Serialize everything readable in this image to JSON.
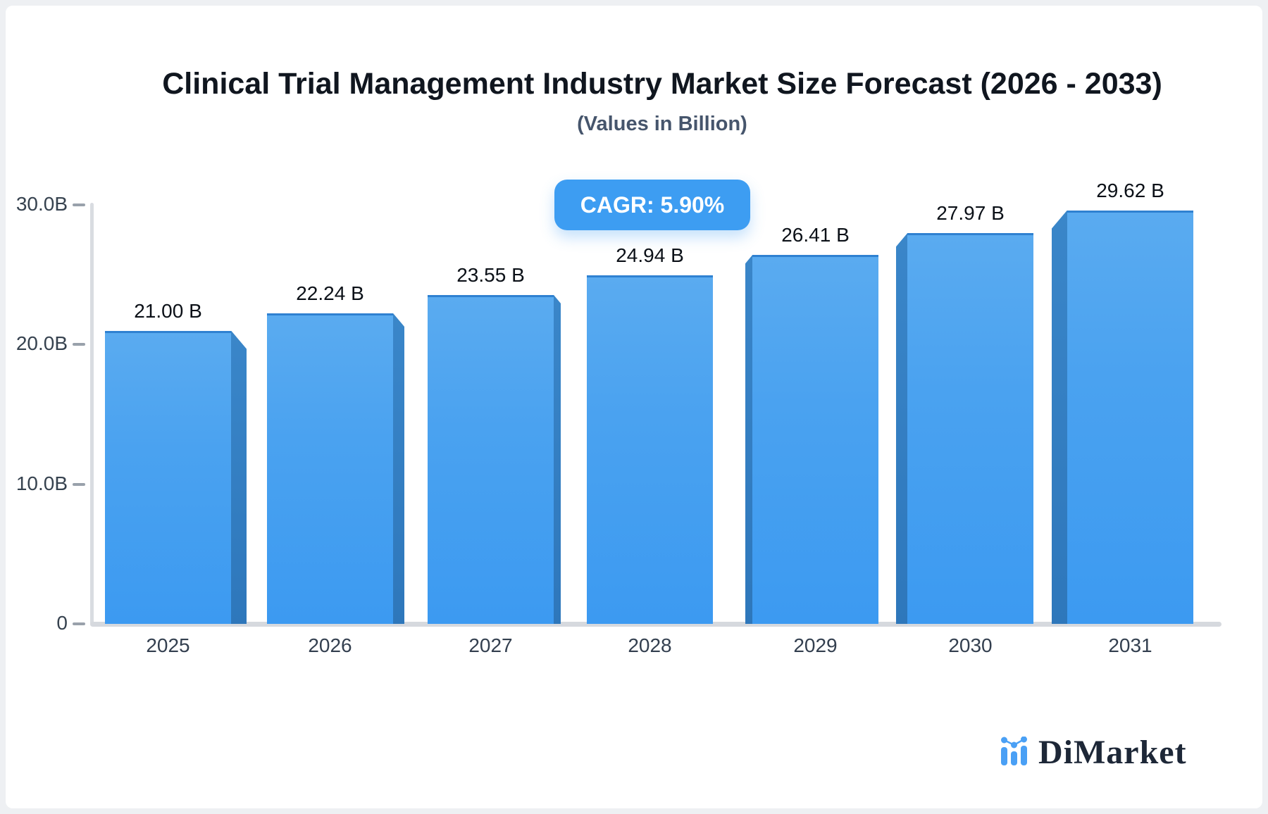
{
  "page": {
    "background_color": "#eef0f3",
    "card_color": "#ffffff"
  },
  "header": {
    "title": "Clinical Trial Management Industry Market Size Forecast (2026 - 2033)",
    "subtitle": "(Values in Billion)"
  },
  "badge": {
    "label": "CAGR: 5.90%",
    "color": "#3d9df2",
    "text_color": "#ffffff"
  },
  "chart_data": {
    "type": "bar",
    "title": "Clinical Trial Management Industry Market Size Forecast (2026 - 2033)",
    "subtitle": "(Values in Billion)",
    "categories": [
      "2025",
      "2026",
      "2027",
      "2028",
      "2029",
      "2030",
      "2031"
    ],
    "values": [
      21.0,
      22.24,
      23.55,
      24.94,
      26.41,
      27.97,
      29.62
    ],
    "value_labels": [
      "21.00 B",
      "22.24 B",
      "23.55 B",
      "24.94 B",
      "26.41 B",
      "27.97 B",
      "29.62 B"
    ],
    "cagr_label": "CAGR: 5.90%",
    "xlabel": "",
    "ylabel": "",
    "ylim": [
      0,
      30
    ],
    "yticks": [
      {
        "value": 30,
        "label": "30.0B"
      },
      {
        "value": 20,
        "label": "20.0B"
      },
      {
        "value": 10,
        "label": "10.0B"
      },
      {
        "value": 0,
        "label": "0"
      }
    ],
    "grid": false,
    "legend": false,
    "bar_face_color": "#449ff1",
    "bar_side_color": "#2e77bb",
    "style": "3d-perspective-center"
  },
  "logo": {
    "text": "DiMarket",
    "icon": "mini-bar-chart-icon",
    "text_color": "#1d2737",
    "icon_color": "#4aa0f5"
  }
}
